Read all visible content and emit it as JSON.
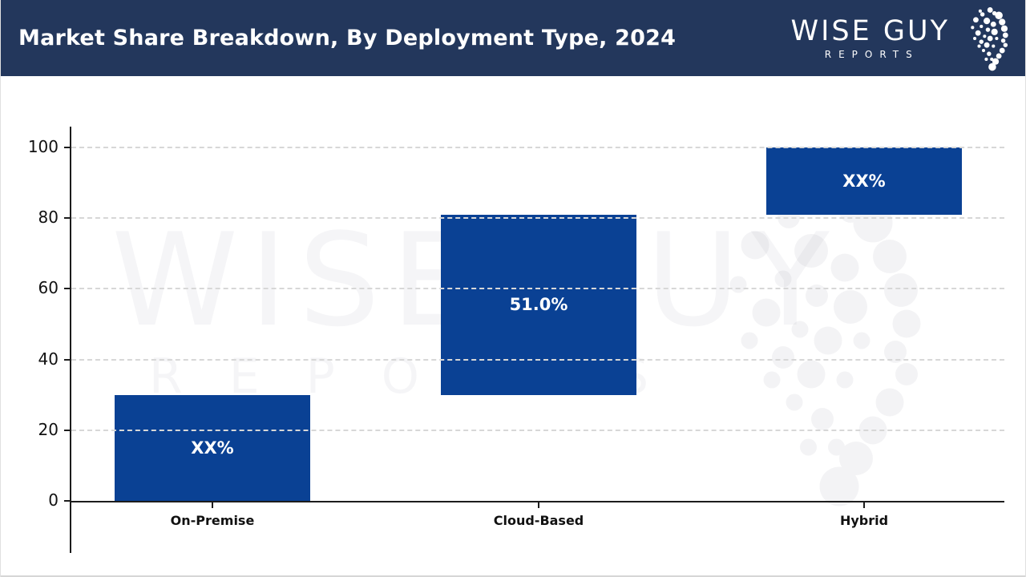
{
  "header": {
    "title": "Market Share Breakdown, By Deployment Type, 2024",
    "logo": {
      "line1": "WISE GUY",
      "line2": "REPORTS"
    }
  },
  "watermark": {
    "line1": "WISE GUY",
    "line2": "REPORTS"
  },
  "colors": {
    "header_bg": "#23375c",
    "bar_blue": "#0a4194",
    "grid_gray": "#d7d7d7",
    "axis_black": "#1c1c1c",
    "bar_label_white": "#ffffff"
  },
  "chart_data": {
    "type": "bar",
    "variant": "waterfall",
    "title": "Market Share Breakdown, By Deployment Type, 2024",
    "categories": [
      "On-Premise",
      "Cloud-Based",
      "Hybrid"
    ],
    "segments": [
      {
        "category": "On-Premise",
        "start": 0,
        "end": 30,
        "label": "XX%"
      },
      {
        "category": "Cloud-Based",
        "start": 30,
        "end": 81,
        "label": "51.0%"
      },
      {
        "category": "Hybrid",
        "start": 81,
        "end": 100,
        "label": "XX%"
      }
    ],
    "ylabel": "",
    "xlabel": "",
    "ylim": [
      0,
      105
    ],
    "yticks": [
      0,
      20,
      40,
      60,
      80,
      100
    ],
    "grid": "dashed-horizontal",
    "legend": "none"
  }
}
